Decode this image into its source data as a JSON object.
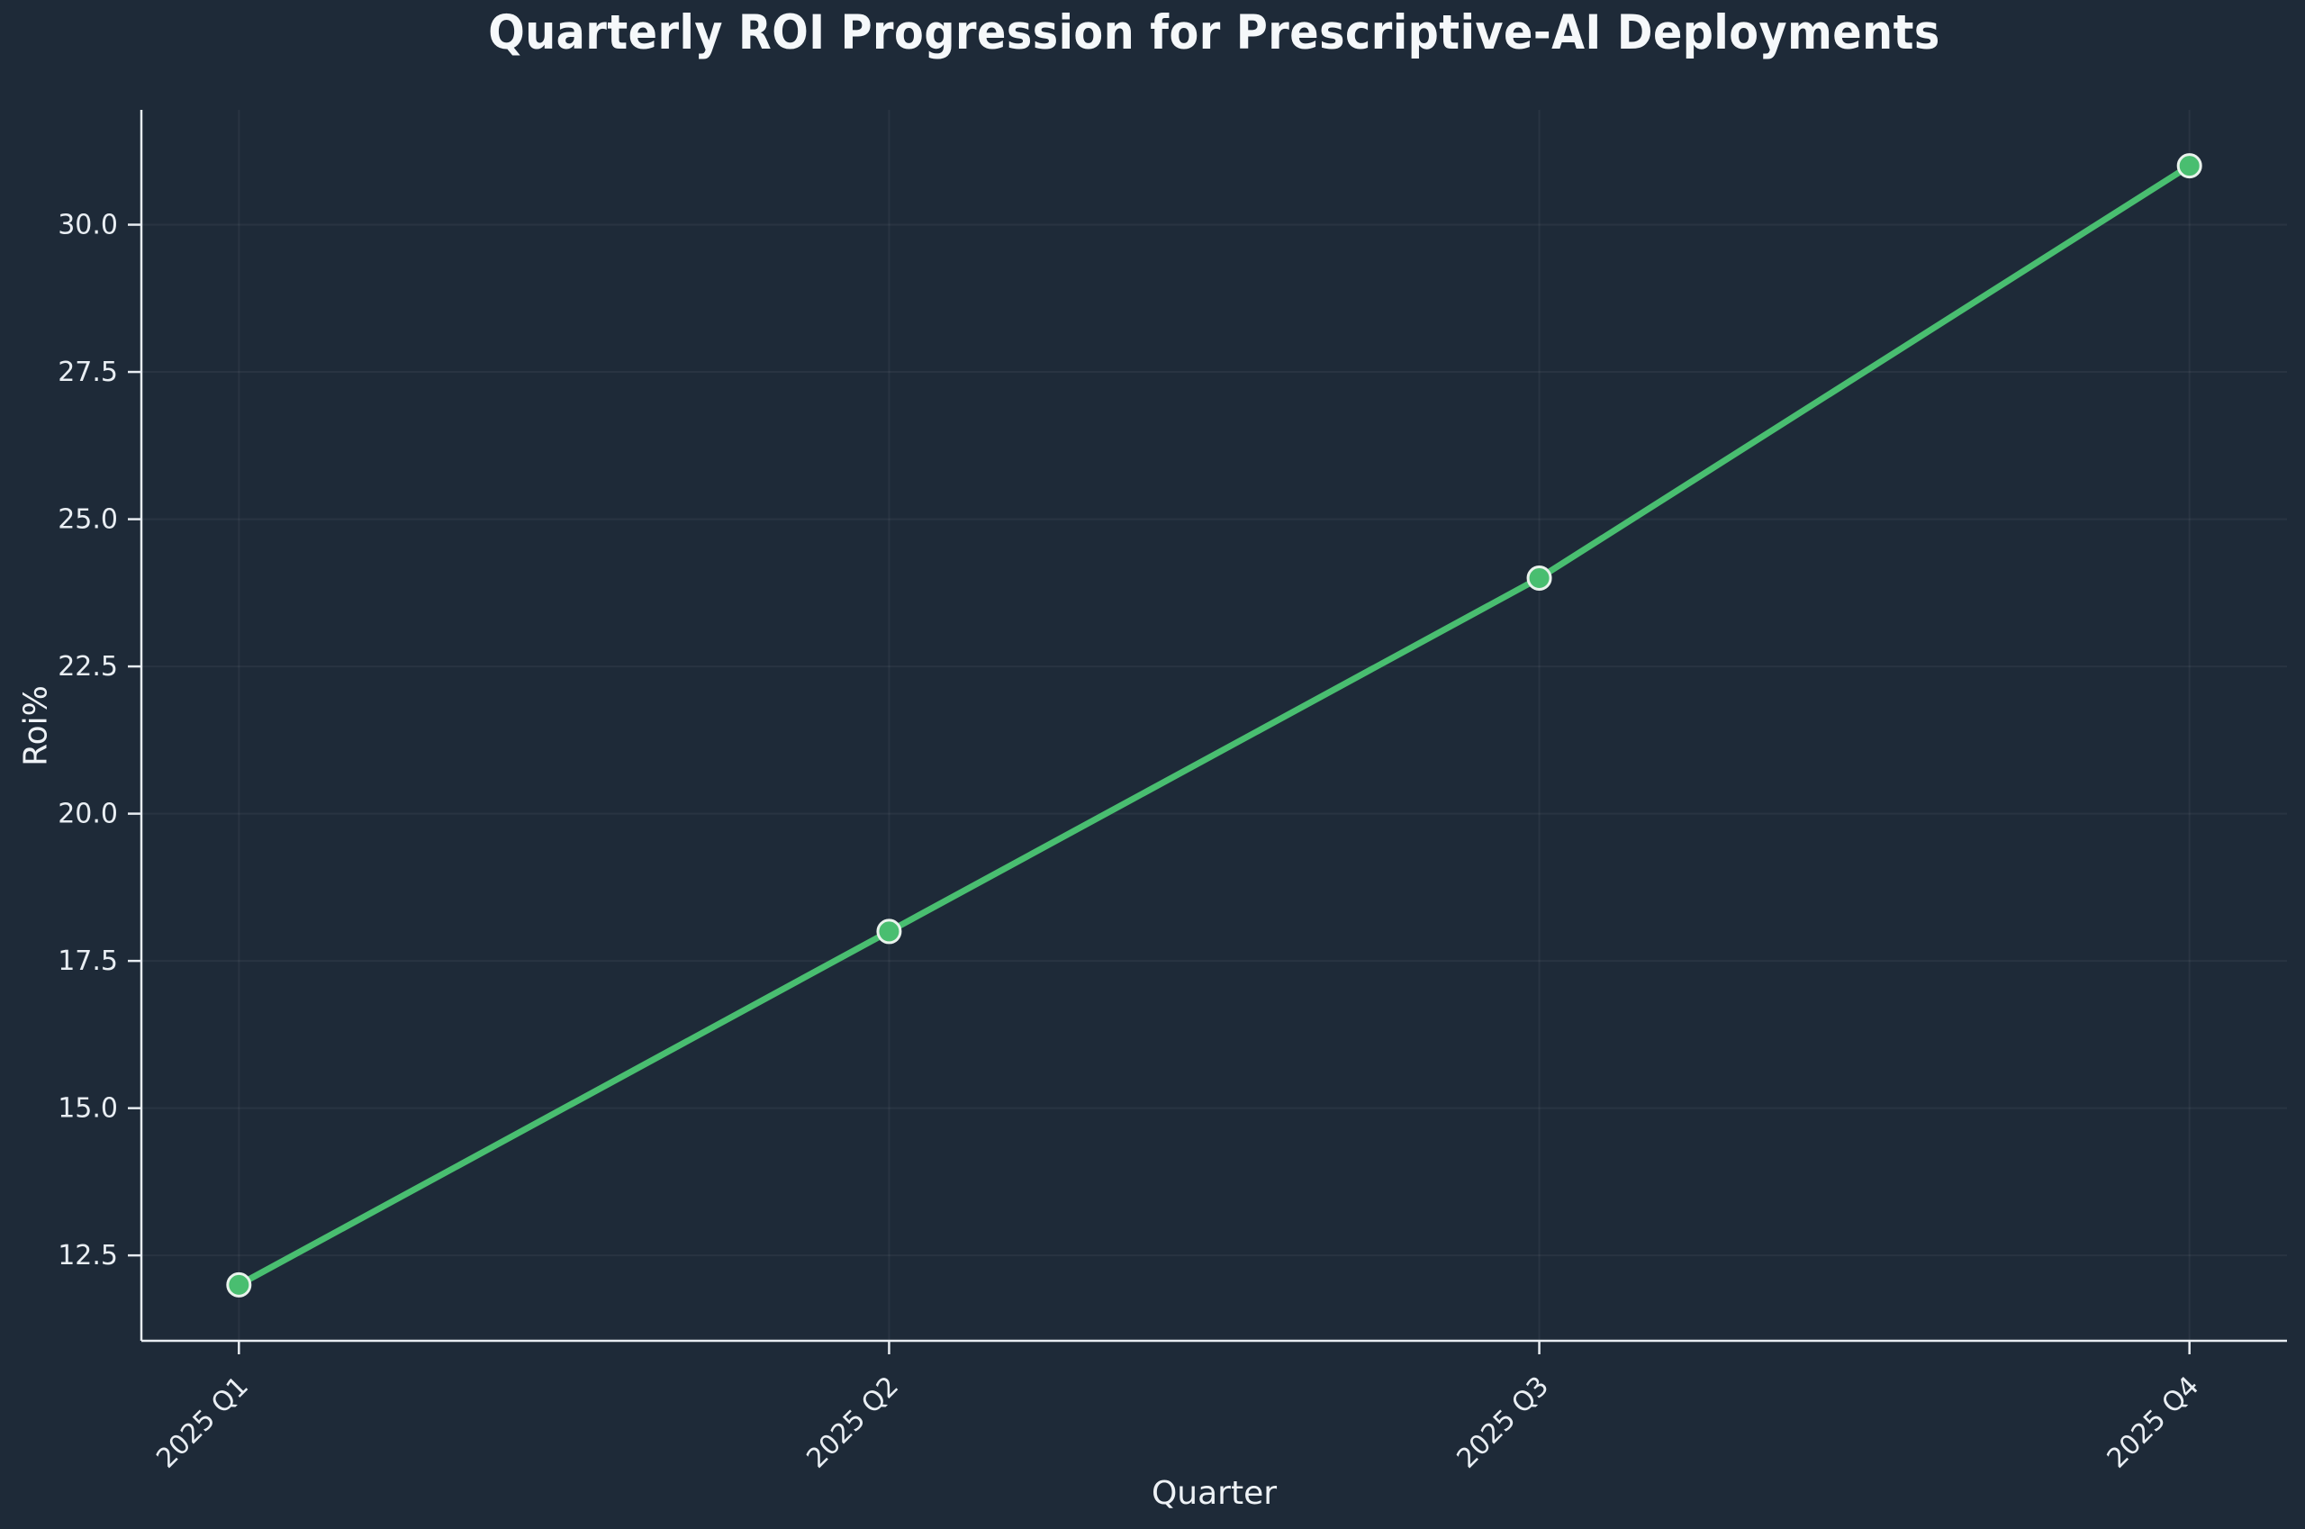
{
  "chart_data": {
    "type": "line",
    "title": "Quarterly ROI Progression for Prescriptive-AI Deployments",
    "xlabel": "Quarter",
    "ylabel": "Roi%",
    "categories": [
      "2025 Q1",
      "2025 Q2",
      "2025 Q3",
      "2025 Q4"
    ],
    "series": [
      {
        "name": "ROI %",
        "values": [
          12,
          18,
          24,
          31
        ]
      }
    ],
    "y_ticks": [
      12.5,
      15.0,
      17.5,
      20.0,
      22.5,
      25.0,
      27.5,
      30.0
    ],
    "y_tick_labels": [
      "12.5",
      "15.0",
      "17.5",
      "20.0",
      "22.5",
      "25.0",
      "27.5",
      "30.0"
    ],
    "ylim": [
      11.05,
      31.95
    ],
    "xlim": [
      -0.15,
      3.15
    ],
    "grid": true,
    "x_tick_rotation": -45,
    "legend": "none",
    "colors": {
      "background": "#1e2a38",
      "line": "#49be70",
      "marker_fill": "#49be70",
      "marker_edge": "#e9f2ec",
      "axis": "#e8edf2",
      "text": "#e9eef3",
      "grid": "rgba(255,255,255,0.05)"
    }
  }
}
